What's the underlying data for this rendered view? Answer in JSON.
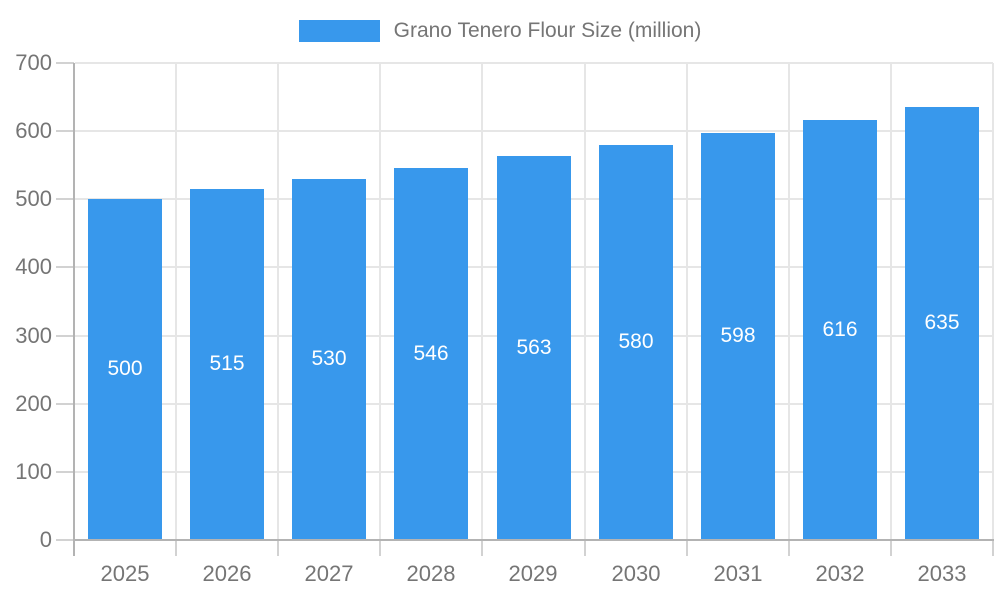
{
  "chart_data": {
    "type": "bar",
    "title": "Grano Tenero Flour Size (million)",
    "categories": [
      "2025",
      "2026",
      "2027",
      "2028",
      "2029",
      "2030",
      "2031",
      "2032",
      "2033"
    ],
    "series": [
      {
        "name": "Grano Tenero Flour Size (million)",
        "values": [
          500,
          515,
          530,
          546,
          563,
          580,
          598,
          616,
          635
        ]
      }
    ],
    "value_labels": [
      "500",
      "515",
      "530",
      "546",
      "563",
      "580",
      "598",
      "616",
      "635"
    ],
    "xlabel": "",
    "ylabel": "",
    "ylim": [
      0,
      700
    ],
    "yticks": [
      0,
      100,
      200,
      300,
      400,
      500,
      600,
      700
    ],
    "grid": true,
    "legend_position": "top",
    "colors": {
      "bar": "#3898ec",
      "bar_value_text": "#ffffff",
      "axis_text": "#757575",
      "gridline": "#e6e6e6",
      "tick": "#d2d2d2",
      "axis_line": "#b3b3b3",
      "background": "#ffffff"
    }
  }
}
